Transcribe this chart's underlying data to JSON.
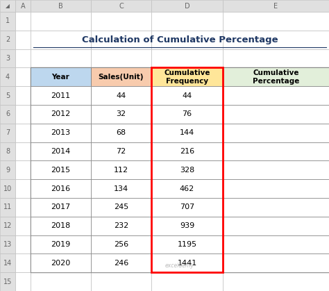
{
  "title": "Calculation of Cumulative Percentage",
  "col_headers": [
    "Year",
    "Sales(Unit)",
    "Cumulative\nFrequency",
    "Cumulative\nPercentage"
  ],
  "col_header_colors": [
    "#BDD7EE",
    "#F8CBAD",
    "#FFE699",
    "#E2EFDA"
  ],
  "rows": [
    [
      "2011",
      "44",
      "44",
      ""
    ],
    [
      "2012",
      "32",
      "76",
      ""
    ],
    [
      "2013",
      "68",
      "144",
      ""
    ],
    [
      "2014",
      "72",
      "216",
      ""
    ],
    [
      "2015",
      "112",
      "328",
      ""
    ],
    [
      "2016",
      "134",
      "462",
      ""
    ],
    [
      "2017",
      "245",
      "707",
      ""
    ],
    [
      "2018",
      "232",
      "939",
      ""
    ],
    [
      "2019",
      "256",
      "1195",
      ""
    ],
    [
      "2020",
      "246",
      "1441",
      ""
    ]
  ],
  "excel_col_labels": [
    "A",
    "B",
    "C",
    "D",
    "E"
  ],
  "title_color": "#1F3864",
  "grid_color": "#C0C0C0",
  "red_box_color": "#FF0000",
  "watermark_text": "exceldemy",
  "background_color": "#FFFFFF",
  "excel_header_bg": "#E0E0E0",
  "excel_header_fg": "#666666",
  "col_header_bg": "#F0F0F0"
}
